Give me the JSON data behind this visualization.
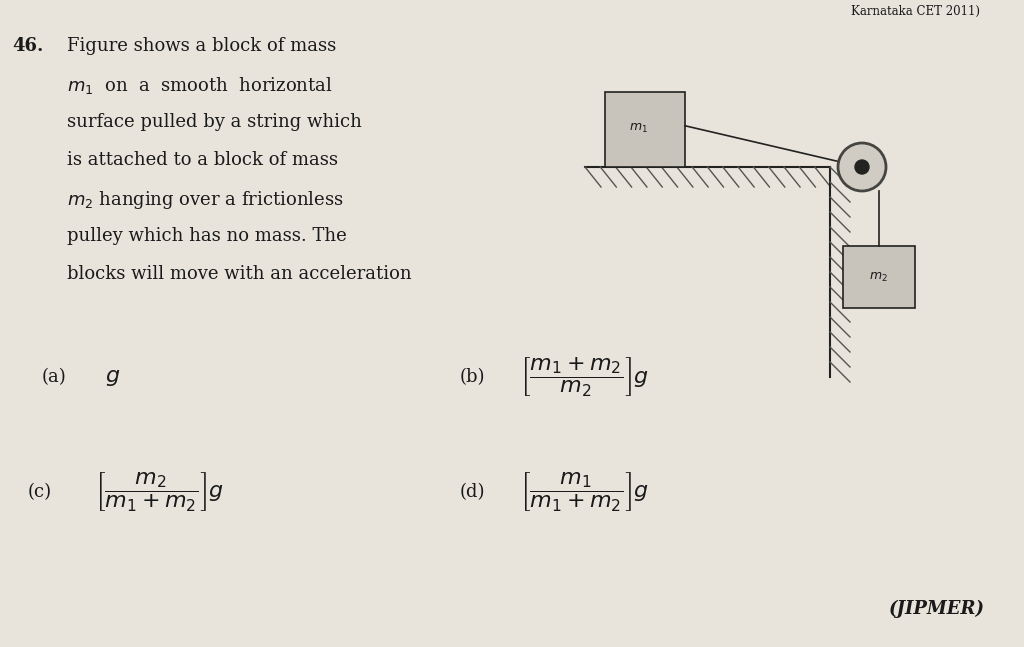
{
  "bg_color": "#e8e4dc",
  "text_color": "#1a1a1a",
  "question_number": "46.",
  "question_text_lines": [
    "Figure shows a block of mass",
    "$m_1$  on  a  smooth  horizontal",
    "surface pulled by a string which",
    "is attached to a block of mass",
    "$m_2$ hanging over a frictionless",
    "pulley which has no mass. The",
    "blocks will move with an acceleration"
  ],
  "options": [
    {
      "label": "(a)",
      "expr": "$g$"
    },
    {
      "label": "(b)",
      "expr": "$\\left[\\dfrac{m_1+m_2}{m_2}\\right]g$"
    },
    {
      "label": "(c)",
      "expr": "$\\left[\\dfrac{m_2}{m_1+m_2}\\right]g$"
    },
    {
      "label": "(d)",
      "expr": "$\\left[\\dfrac{m_1}{m_1+m_2}\\right]g$"
    }
  ],
  "source": "(JIPMER)",
  "header_text": "Karnataka CET 2011)",
  "block1_color": "#c8c4bc",
  "block2_color": "#c8c4bc",
  "pulley_outer_color": "#d0ccc4",
  "pulley_edge_color": "#444440",
  "pulley_inner_color": "#222220",
  "line_color": "#222220",
  "hatch_color": "#555550"
}
